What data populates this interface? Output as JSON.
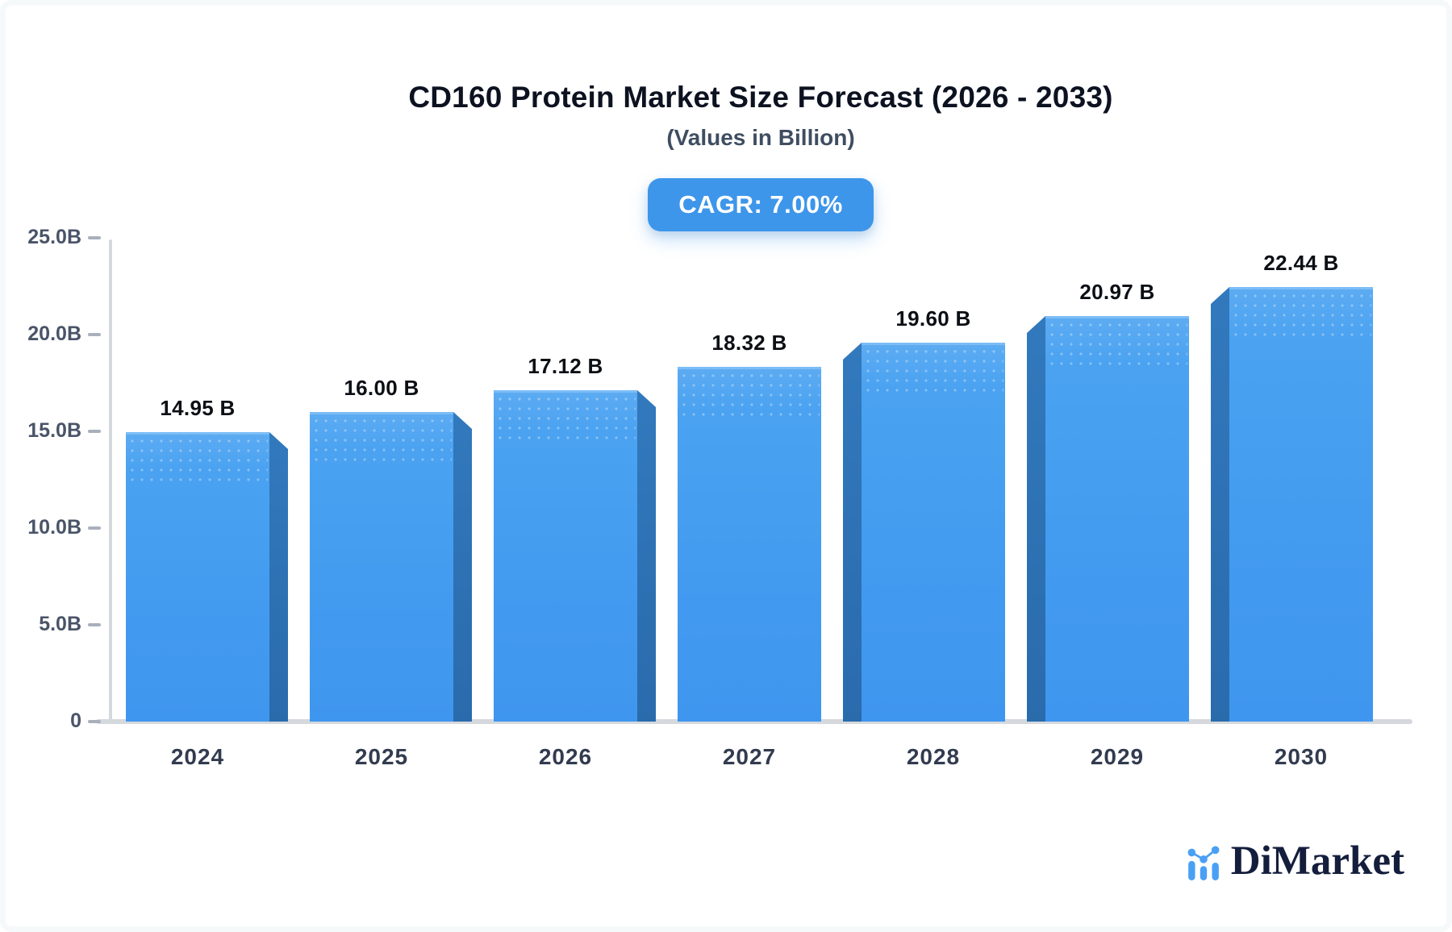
{
  "header": {
    "title": "CD160 Protein Market Size Forecast (2026 - 2033)",
    "subtitle": "(Values in Billion)",
    "cagr_label": "CAGR: 7.00%"
  },
  "chart_data": {
    "type": "bar",
    "title": "CD160 Protein Market Size Forecast (2026 - 2033)",
    "subtitle": "(Values in Billion)",
    "categories": [
      "2024",
      "2025",
      "2026",
      "2027",
      "2028",
      "2029",
      "2030"
    ],
    "values": [
      14.95,
      16.0,
      17.12,
      18.32,
      19.6,
      20.97,
      22.44
    ],
    "value_labels": [
      "14.95 B",
      "16.00 B",
      "17.12 B",
      "18.32 B",
      "19.60 B",
      "20.97 B",
      "22.44 B"
    ],
    "xlabel": "",
    "ylabel": "",
    "ylim": [
      0,
      25
    ],
    "yticks": {
      "labels": [
        "25.0B",
        "20.0B",
        "15.0B",
        "10.0B",
        "5.0B",
        "0"
      ],
      "values": [
        25,
        20,
        15,
        10,
        5,
        0
      ]
    },
    "grid": false,
    "legend": false,
    "annotation": "CAGR: 7.00%"
  },
  "brand": {
    "name": "DiMarket"
  },
  "colors": {
    "title": "#0c1220",
    "subtitle": "#3f4d61",
    "badge-bg": "#3d96ea",
    "badge-text": "#ffffff",
    "bar-face": "#46a0f0",
    "bar-bevel": "#2d72b7",
    "axis": "#d5d9de",
    "tick": "#a9b0bc",
    "ylabel": "#4a5468",
    "xlabel": "#323b4f",
    "value-label": "#0c0f14",
    "brand-text": "#141e3c",
    "brand-blue": "#4aa0f5"
  }
}
